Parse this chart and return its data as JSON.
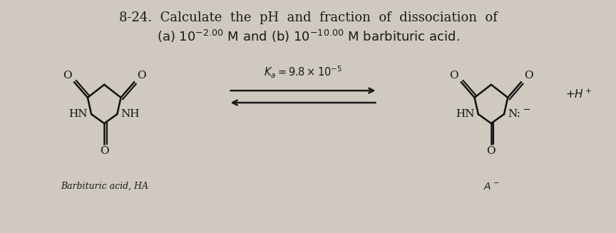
{
  "bg_color": "#cfc9bf",
  "text_color": "#1a1a1a",
  "title_line1": "8-24.  Calculate  the  pH  and  fraction  of  dissociation  of",
  "title_line2_plain": "(a) 10",
  "title_exp_a": "-2.00",
  "title_mid": " M and (b) 10",
  "title_exp_b": "-10.00",
  "title_end": " M barbituric acid.",
  "ka_exp": "-5",
  "label_left": "Barbituric acid, HA",
  "label_right": "A",
  "plus_h": "+ H",
  "lw": 1.6,
  "mol_lw": 1.8
}
